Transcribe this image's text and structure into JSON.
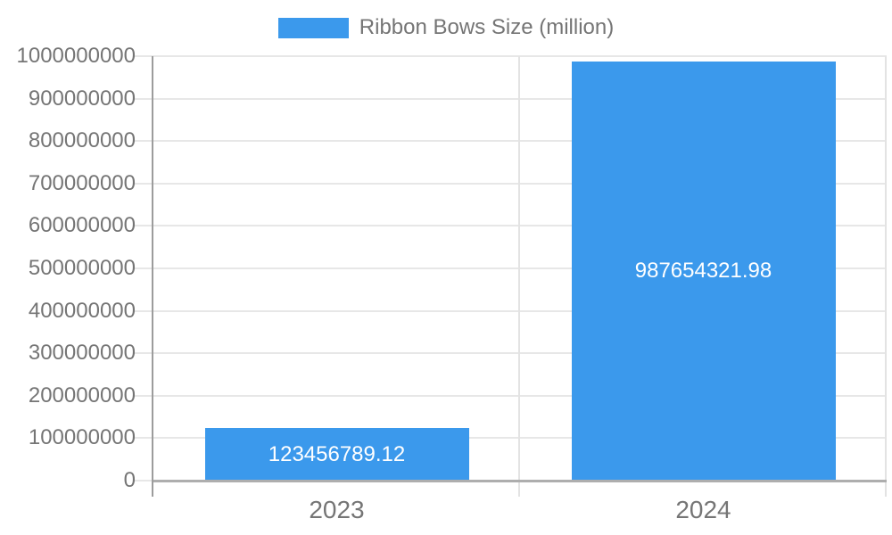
{
  "legend": {
    "label": "Ribbon Bows Size (million)"
  },
  "colors": {
    "bar": "#3b99ec",
    "grid": "#e7e7e7",
    "axis": "#9c9c9c",
    "baseline": "#aeaeae",
    "text": "#757575",
    "value_label": "#ffffff"
  },
  "chart_data": {
    "type": "bar",
    "title": "Ribbon Bows Size (million)",
    "categories": [
      "2023",
      "2024"
    ],
    "values": [
      123456789.12,
      987654321.98
    ],
    "value_labels": [
      "123456789.12",
      "987654321.98"
    ],
    "series": [
      {
        "name": "Ribbon Bows Size (million)",
        "values": [
          123456789.12,
          987654321.98
        ]
      }
    ],
    "xlabel": "",
    "ylabel": "",
    "ylim": [
      0,
      1000000000
    ],
    "ytick_step": 100000000,
    "yticks": [
      "1000000000",
      "900000000",
      "800000000",
      "700000000",
      "600000000",
      "500000000",
      "400000000",
      "300000000",
      "200000000",
      "100000000",
      "0"
    ],
    "grid": true,
    "legend_position": "top",
    "value_label_position": "center"
  }
}
